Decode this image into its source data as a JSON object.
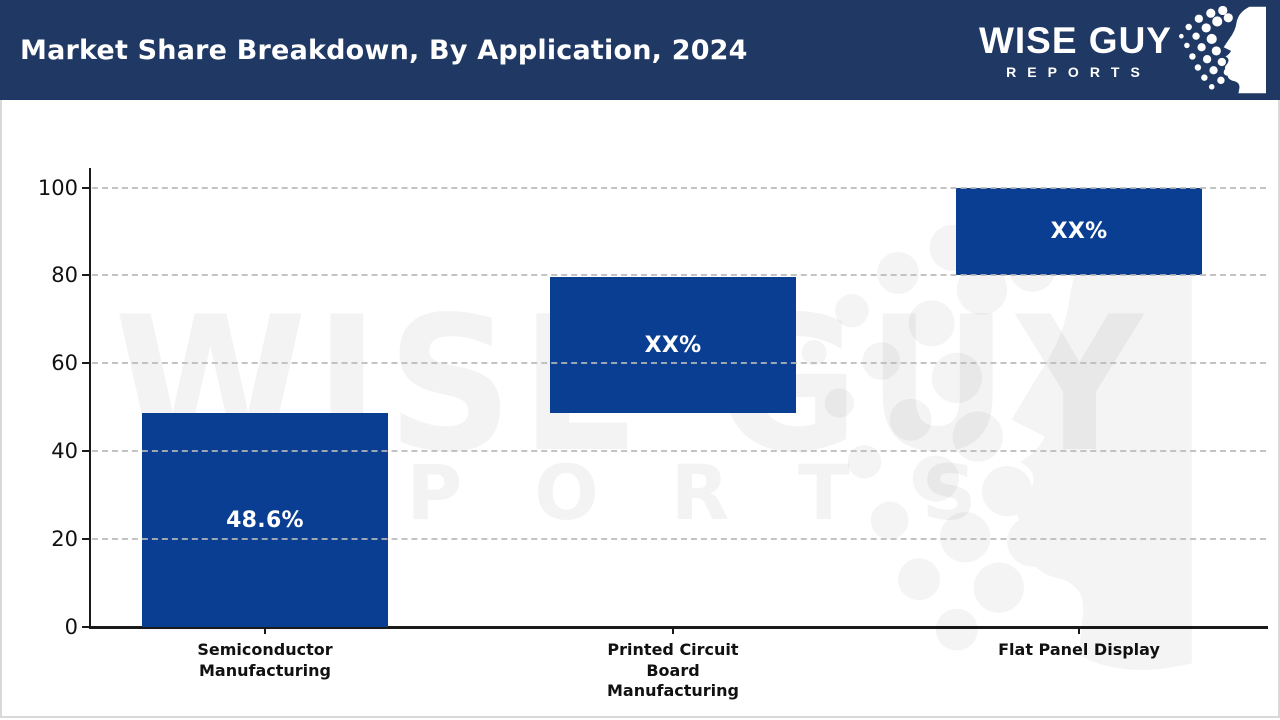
{
  "header": {
    "title": "Market Share Breakdown, By Application, 2024",
    "logo": {
      "line1": "WISE GUY",
      "line2": "REPORTS"
    }
  },
  "watermark": {
    "line1": "WISE GUY",
    "line2": "REPORTS"
  },
  "chart_data": {
    "type": "bar",
    "subtype": "waterfall-segments",
    "title": "Market Share Breakdown, By Application, 2024",
    "categories": [
      "Semiconductor Manufacturing",
      "Printed Circuit Board Manufacturing",
      "Flat Panel Display"
    ],
    "category_label_lines": [
      [
        "Semiconductor",
        "Manufacturing"
      ],
      [
        "Printed Circuit",
        "Board",
        "Manufacturing"
      ],
      [
        "Flat Panel Display"
      ]
    ],
    "segments": [
      {
        "category": "Semiconductor Manufacturing",
        "start": 0,
        "end": 48.6,
        "value_label": "48.6%"
      },
      {
        "category": "Printed Circuit Board Manufacturing",
        "start": 48.6,
        "end": 79.6,
        "value_label": "XX%"
      },
      {
        "category": "Flat Panel Display",
        "start": 80,
        "end": 100,
        "value_label": "XX%"
      }
    ],
    "ylim": [
      0,
      100
    ],
    "yticks": [
      0,
      20,
      40,
      60,
      80,
      100
    ],
    "grid": "horizontal-dashed",
    "legend_position": "none",
    "bar_color": "#0a3e92",
    "value_label_color": "#ffffff"
  },
  "colors": {
    "header_bg": "#1f3864",
    "bar": "#0a3e92",
    "axis": "#1a1a1a",
    "gridline": "#b9b9b9",
    "page_border": "#d9d9d9"
  }
}
